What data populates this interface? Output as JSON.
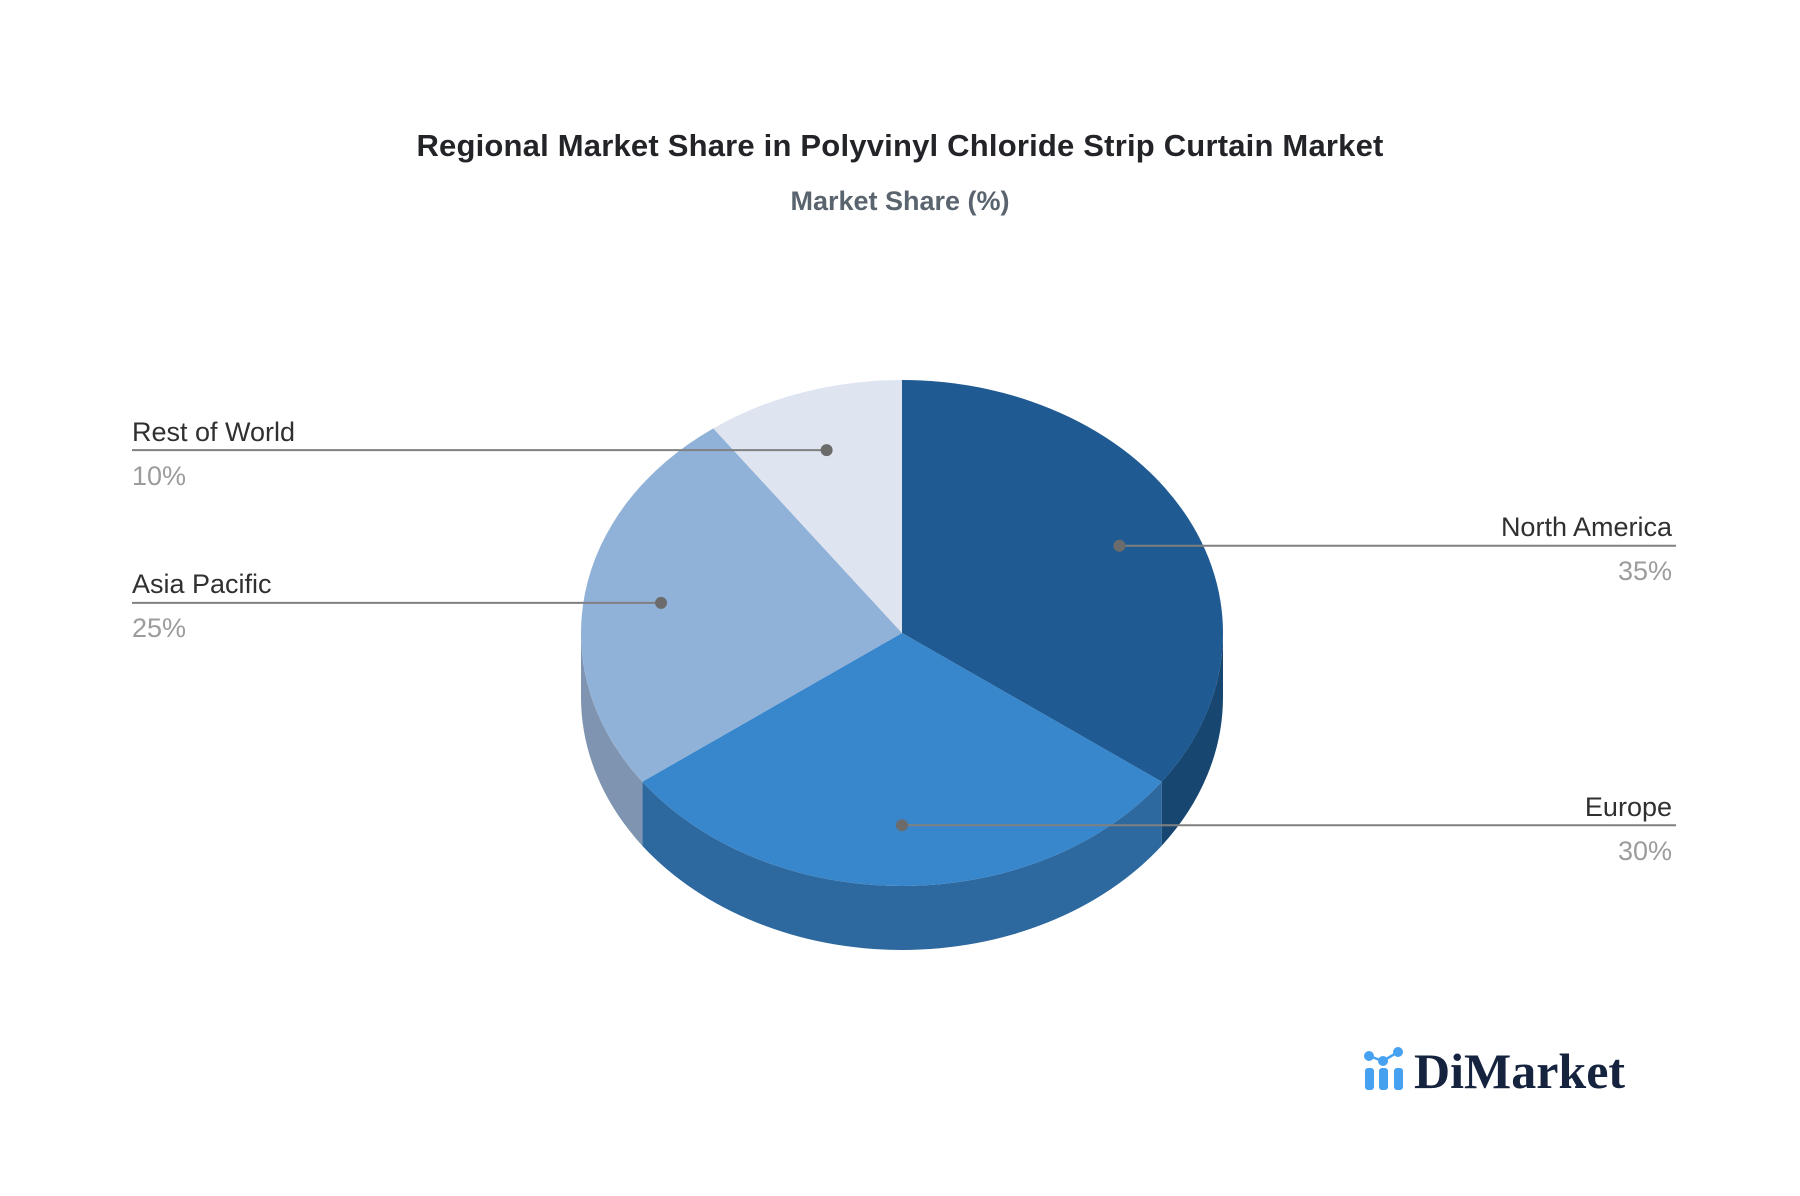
{
  "title": "Regional Market Share in Polyvinyl Chloride Strip Curtain Market",
  "subtitle": "Market Share (%)",
  "chart_data": {
    "type": "pie",
    "style_3d": true,
    "start_angle_deg": 0,
    "direction": "clockwise",
    "unit": "%",
    "title": "Regional Market Share in Polyvinyl Chloride Strip Curtain Market",
    "subtitle": "Market Share (%)",
    "legend_position": "connected-labels",
    "slices": [
      {
        "label": "North America",
        "value": 35,
        "pct_label": "35%",
        "color": "#1F5A92",
        "side_color": "#174670",
        "label_side": "right"
      },
      {
        "label": "Europe",
        "value": 30,
        "pct_label": "30%",
        "color": "#3886CB",
        "side_color": "#2D689F",
        "label_side": "right"
      },
      {
        "label": "Asia Pacific",
        "value": 25,
        "pct_label": "25%",
        "color": "#91B2D8",
        "side_color": "#7E94B0",
        "label_side": "left"
      },
      {
        "label": "Rest of World",
        "value": 10,
        "pct_label": "10%",
        "color": "#DEE4F0",
        "side_color": "#C3CCDC",
        "label_side": "left"
      }
    ]
  },
  "branding": {
    "logo_text": "DiMarket",
    "logo_icon": "bar-chart-trend-icon",
    "logo_bar_color": "#47A1F1",
    "logo_text_color": "#16233E"
  },
  "colors": {
    "title": "#222428",
    "subtitle": "#5A646E",
    "label_text": "#303030",
    "pct_text": "#9C9C9C",
    "leader_line": "#808080",
    "leader_dot": "#6B6B6B",
    "background": "#FFFFFF"
  }
}
